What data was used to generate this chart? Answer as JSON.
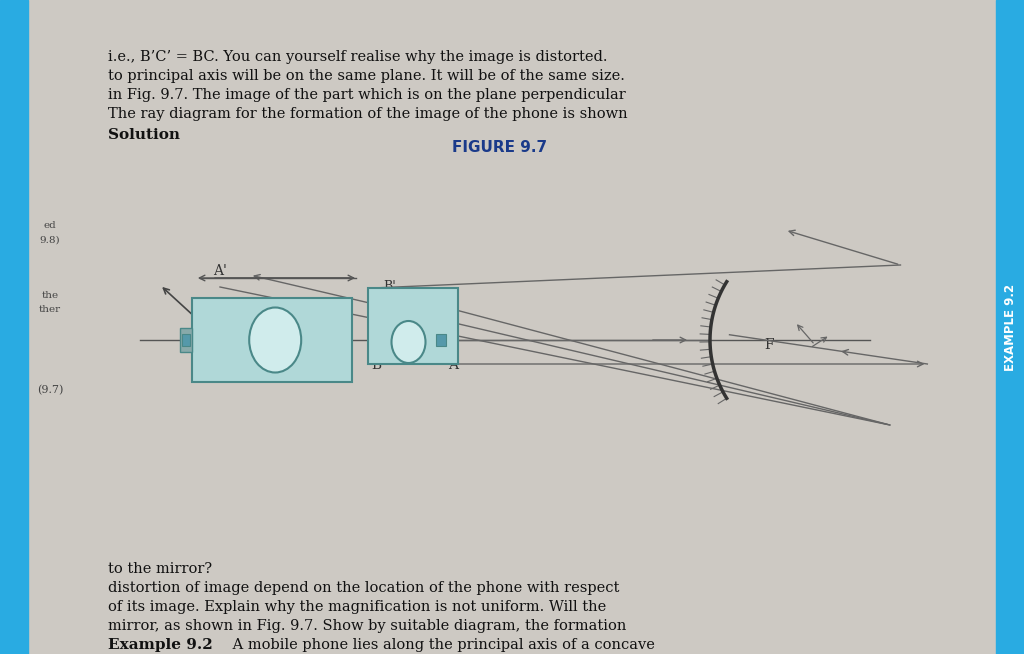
{
  "bg_color": "#cdc9c3",
  "diagram_bg": "#cdc9c3",
  "left_tab_color": "#29abe2",
  "right_tab_color": "#29abe2",
  "title": "Example 9.2",
  "body_lines": [
    " A mobile phone lies along the principal axis of a concave",
    "mirror, as shown in Fig. 9.7. Show by suitable diagram, the formation",
    "of its image. Explain why the magnification is not uniform. Will the",
    "distortion of image depend on the location of the phone with respect",
    "to the mirror?"
  ],
  "solution_header": "Solution",
  "solution_lines": [
    "The ray diagram for the formation of the image of the phone is shown",
    "in Fig. 9.7. The image of the part which is on the plane perpendicular",
    "to principal axis will be on the same plane. It will be of the same size.",
    "i.e., B’C’ = BC. You can yourself realise why the image is distorted."
  ],
  "figure_label": "FIGURE 9.7",
  "side_right_text": "EXAMPLE 9.2",
  "left_margin_text1": "(9.7)",
  "left_margin_text2": "ther",
  "left_margin_text3": "the",
  "left_margin_text4": "9.8)",
  "left_margin_text5": "ed",
  "phone_color": "#b0d8d8",
  "phone_edge": "#4a8888",
  "lens_color": "#d0ecec",
  "ray_color": "#666666",
  "mirror_color": "#333333",
  "axis_color": "#555555",
  "text_color": "#111111",
  "figure_label_color": "#1a3a8a"
}
